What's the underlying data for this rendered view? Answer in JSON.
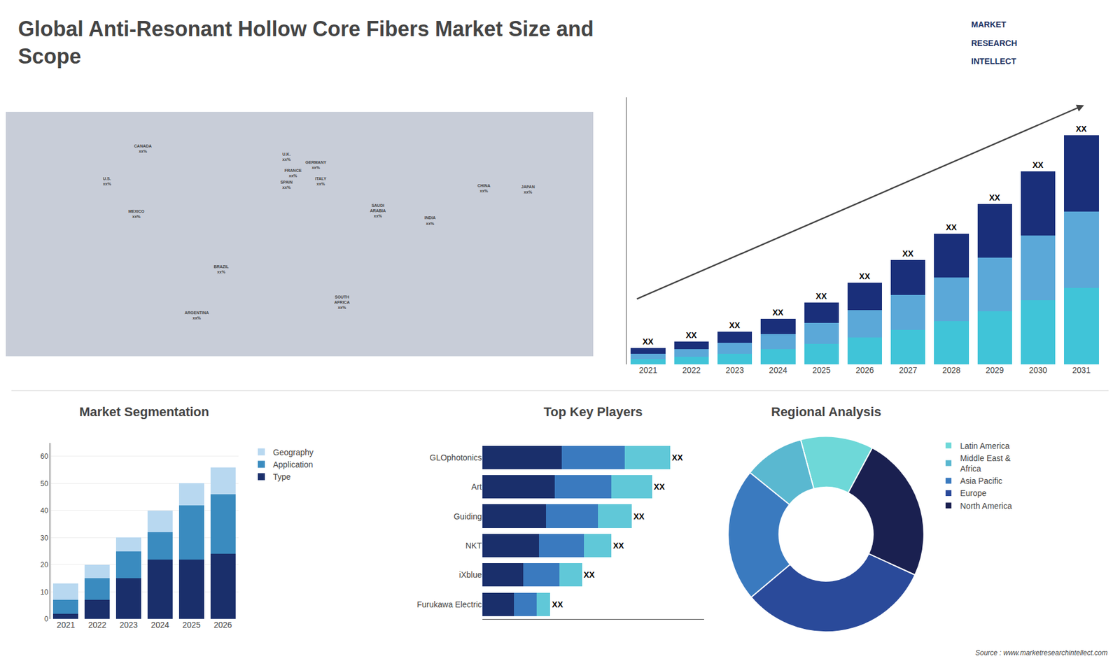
{
  "title": "Global Anti-Resonant Hollow Core Fibers Market Size and\nScope",
  "logo": {
    "texts": [
      "MARKET",
      "RESEARCH",
      "INTELLECT"
    ],
    "color": "#1a3060"
  },
  "source": "Source : www.marketresearchintellect.com",
  "chart_data": [
    {
      "type": "map",
      "labels": [
        "CANADA\nxx%",
        "U.S.\nxx%",
        "MEXICO\nxx%",
        "BRAZIL\nxx%",
        "ARGENTINA\nxx%",
        "U.K.\nxx%",
        "FRANCE\nxx%",
        "SPAIN\nxx%",
        "GERMANY\nxx%",
        "ITALY\nxx%",
        "SAUDI\nARABIA\nxx%",
        "SOUTH\nAFRICA\nxx%",
        "CHINA\nxx%",
        "INDIA\nxx%",
        "JAPAN\nxx%"
      ],
      "x": [
        -96,
        -118,
        -100,
        -48,
        -63,
        -8,
        -4,
        -8,
        10,
        13,
        48,
        26,
        113,
        80,
        140
      ],
      "y": [
        62,
        42,
        22,
        -12,
        -40,
        57,
        47,
        40,
        52,
        42,
        24,
        -32,
        38,
        18,
        37
      ],
      "color": "#c8cdd8",
      "xlim": [
        -180,
        180
      ],
      "ylim": [
        -65,
        85
      ],
      "tick_labels": false,
      "grid": false
    },
    {
      "type": "bar",
      "stacked": true,
      "categories": [
        "2021",
        "2022",
        "2023",
        "2024",
        "2025",
        "2026",
        "2027",
        "2028",
        "2029",
        "2030",
        "2031"
      ],
      "series": [
        {
          "color": "#40c4d8",
          "values": [
            1.0,
            1.4,
            2.0,
            2.8,
            3.8,
            5.0,
            6.4,
            8.0,
            9.8,
            11.8,
            14.0
          ]
        },
        {
          "color": "#5ba8d8",
          "values": [
            1.0,
            1.4,
            2.0,
            2.8,
            3.8,
            5.0,
            6.4,
            8.0,
            9.8,
            11.8,
            14.0
          ]
        },
        {
          "color": "#1a2f7a",
          "values": [
            1.0,
            1.4,
            2.0,
            2.8,
            3.8,
            5.0,
            6.4,
            8.0,
            9.8,
            11.8,
            14.0
          ]
        }
      ],
      "annotations": [
        "XX",
        "XX",
        "XX",
        "XX",
        "XX",
        "XX",
        "XX",
        "XX",
        "XX",
        "XX",
        "XX"
      ],
      "ylim": [
        0,
        49
      ],
      "tick_labels": "x",
      "grid": false
    },
    {
      "type": "bar",
      "title": "Market Segmentation",
      "stacked": true,
      "categories": [
        "2021",
        "2022",
        "2023",
        "2024",
        "2025",
        "2026"
      ],
      "series": [
        {
          "name": "Type",
          "color": "#1a2f6b",
          "values": [
            2,
            7,
            15,
            22,
            22,
            24
          ]
        },
        {
          "name": "Application",
          "color": "#3a8bbf",
          "values": [
            5,
            8,
            10,
            10,
            20,
            22
          ]
        },
        {
          "name": "Geography",
          "color": "#b8d8f0",
          "values": [
            6,
            5,
            5,
            8,
            8,
            10
          ]
        }
      ],
      "ylim": [
        0,
        65
      ],
      "yticks": [
        0,
        10,
        20,
        30,
        40,
        50,
        60
      ],
      "grid": true,
      "legend": "right"
    },
    {
      "type": "bar",
      "title": "Top Key Players",
      "orientation": "horizontal",
      "stacked": true,
      "categories": [
        "GLOphotonics",
        "Art",
        "Guiding",
        "NKT",
        "iXblue",
        "Furukawa Electric"
      ],
      "series": [
        {
          "color": "#1a2f6b",
          "values": [
            35,
            32,
            28,
            25,
            18,
            14
          ]
        },
        {
          "color": "#3a7abf",
          "values": [
            28,
            25,
            23,
            20,
            16,
            10
          ]
        },
        {
          "color": "#60c8d8",
          "values": [
            20,
            18,
            15,
            12,
            10,
            6
          ]
        }
      ],
      "annotations": [
        "XX",
        "XX",
        "XX",
        "XX",
        "XX",
        "XX"
      ],
      "xlim": [
        0,
        98
      ],
      "tick_labels": "y",
      "grid": false
    },
    {
      "type": "donut",
      "title": "Regional Analysis",
      "categories": [
        "Latin America",
        "Middle East &\nAfrica",
        "Asia Pacific",
        "Europe",
        "North America"
      ],
      "values": [
        12,
        10,
        22,
        32,
        24
      ],
      "colors": [
        "#6ed8d8",
        "#5ab8d0",
        "#3a7abf",
        "#2a4a9a",
        "#1a2050"
      ],
      "legend": "right"
    }
  ]
}
